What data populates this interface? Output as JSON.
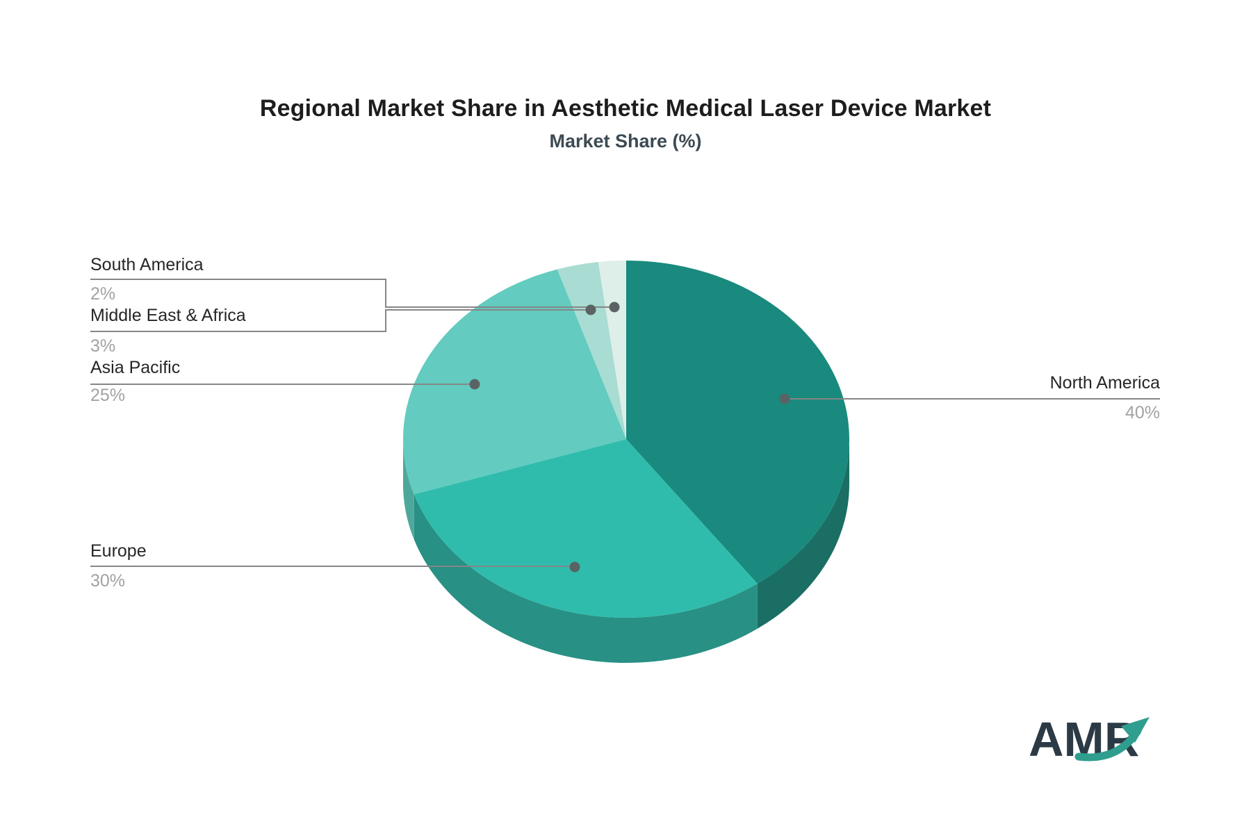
{
  "title": "Regional Market Share in Aesthetic Medical Laser Device Market",
  "subtitle": "Market Share (%)",
  "logo": {
    "text": "AMR",
    "arrow_color": "#2f9e8e",
    "text_color": "#2b3a45"
  },
  "chart_data": {
    "type": "pie",
    "title": "Regional Market Share in Aesthetic Medical Laser Device Market",
    "subtitle": "Market Share (%)",
    "unit": "%",
    "effect": "3d",
    "start_angle": "12-oclock",
    "direction": "clockwise",
    "legend_position": "callout-labels",
    "slices": [
      {
        "label": "North America",
        "value": 40,
        "pct": "40%",
        "color": "#198a7d",
        "side_color": "#1a6e63"
      },
      {
        "label": "Europe",
        "value": 30,
        "pct": "30%",
        "color": "#2fbcad",
        "side_color": "#289084"
      },
      {
        "label": "Asia Pacific",
        "value": 25,
        "pct": "25%",
        "color": "#63cbbf",
        "side_color": "#4da89b"
      },
      {
        "label": "Middle East & Africa",
        "value": 3,
        "pct": "3%",
        "color": "#a9dcd3",
        "side_color": "#8fc0b6"
      },
      {
        "label": "South America",
        "value": 2,
        "pct": "2%",
        "color": "#deeee9",
        "side_color": "#c0d6d0"
      }
    ]
  }
}
